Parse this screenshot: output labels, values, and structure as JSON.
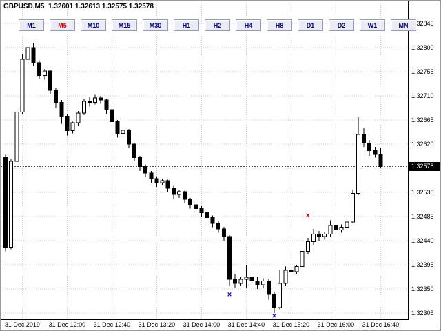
{
  "header": {
    "symbol_info": "GBPUSD,M5  1.32601 1.32613 1.32575 1.32578"
  },
  "toolbar": {
    "timeframes": [
      {
        "label": "M1",
        "active": false
      },
      {
        "label": "M5",
        "active": true
      },
      {
        "label": "M10",
        "active": false
      },
      {
        "label": "M15",
        "active": false
      },
      {
        "label": "M30",
        "active": false
      },
      {
        "label": "H1",
        "active": false
      },
      {
        "label": "H2",
        "active": false
      },
      {
        "label": "H4",
        "active": false
      },
      {
        "label": "H8",
        "active": false
      },
      {
        "label": "D1",
        "active": false
      },
      {
        "label": "D2",
        "active": false
      },
      {
        "label": "W1",
        "active": false
      },
      {
        "label": "MN",
        "active": false
      }
    ]
  },
  "chart_data": {
    "type": "candlestick",
    "symbol": "GBPUSD",
    "timeframe": "M5",
    "title": "GBPUSD,M5",
    "ohlc_readout": {
      "open": "1.32601",
      "high": "1.32613",
      "low": "1.32575",
      "close": "1.32578"
    },
    "current_price": 1.32578,
    "current_price_label": "1.32578",
    "price_axis": {
      "max": 1.32845,
      "min": 1.32305,
      "step": 0.00045,
      "labels": [
        1.32845,
        1.328,
        1.32755,
        1.3271,
        1.32665,
        1.3262,
        1.32575,
        1.3253,
        1.32485,
        1.3244,
        1.32395,
        1.3235,
        1.32305
      ]
    },
    "time_axis": [
      {
        "label": "31 Dec 2019",
        "index": 3
      },
      {
        "label": "31 Dec 12:00",
        "index": 11
      },
      {
        "label": "31 Dec 12:40",
        "index": 19
      },
      {
        "label": "31 Dec 13:20",
        "index": 27
      },
      {
        "label": "31 Dec 14:00",
        "index": 35
      },
      {
        "label": "31 Dec 14:40",
        "index": 43
      },
      {
        "label": "31 Dec 15:20",
        "index": 51
      },
      {
        "label": "31 Dec 16:00",
        "index": 59
      },
      {
        "label": "31 Dec 16:40",
        "index": 67
      }
    ],
    "candles": [
      [
        1.32595,
        1.326,
        1.3242,
        1.32428
      ],
      [
        1.32428,
        1.32592,
        1.32424,
        1.32588
      ],
      [
        1.32588,
        1.32684,
        1.32584,
        1.3268
      ],
      [
        1.3268,
        1.32788,
        1.32676,
        1.32778
      ],
      [
        1.32778,
        1.32815,
        1.32772,
        1.328
      ],
      [
        1.328,
        1.32808,
        1.32766,
        1.32772
      ],
      [
        1.32772,
        1.32776,
        1.32742,
        1.32748
      ],
      [
        1.32748,
        1.3276,
        1.3274,
        1.32756
      ],
      [
        1.32756,
        1.32758,
        1.32714,
        1.3272
      ],
      [
        1.3272,
        1.32724,
        1.32688,
        1.32698
      ],
      [
        1.32698,
        1.32702,
        1.32658,
        1.32672
      ],
      [
        1.32672,
        1.32676,
        1.32636,
        1.32645
      ],
      [
        1.32645,
        1.32662,
        1.3264,
        1.3266
      ],
      [
        1.3266,
        1.32682,
        1.32654,
        1.32678
      ],
      [
        1.32678,
        1.32705,
        1.32674,
        1.327
      ],
      [
        1.327,
        1.32708,
        1.3269,
        1.32698
      ],
      [
        1.32698,
        1.32712,
        1.32694,
        1.32706
      ],
      [
        1.32706,
        1.3271,
        1.32695,
        1.32702
      ],
      [
        1.32702,
        1.32704,
        1.32676,
        1.32684
      ],
      [
        1.32684,
        1.32686,
        1.32655,
        1.32662
      ],
      [
        1.32662,
        1.32665,
        1.32632,
        1.3264
      ],
      [
        1.3264,
        1.3265,
        1.32634,
        1.32646
      ],
      [
        1.32646,
        1.32648,
        1.32612,
        1.3262
      ],
      [
        1.3262,
        1.32622,
        1.32588,
        1.32595
      ],
      [
        1.32595,
        1.32598,
        1.3257,
        1.32578
      ],
      [
        1.32578,
        1.32582,
        1.32558,
        1.32566
      ],
      [
        1.32566,
        1.3257,
        1.32548,
        1.32556
      ],
      [
        1.32556,
        1.3256,
        1.3254,
        1.32548
      ],
      [
        1.32548,
        1.32556,
        1.32543,
        1.32552
      ],
      [
        1.32552,
        1.32554,
        1.3253,
        1.32538
      ],
      [
        1.32538,
        1.32542,
        1.32518,
        1.32526
      ],
      [
        1.32526,
        1.32534,
        1.3252,
        1.32531
      ],
      [
        1.32531,
        1.32533,
        1.3251,
        1.32517
      ],
      [
        1.32517,
        1.3252,
        1.325,
        1.32507
      ],
      [
        1.32507,
        1.32512,
        1.32494,
        1.325
      ],
      [
        1.325,
        1.32504,
        1.32485,
        1.32492
      ],
      [
        1.32492,
        1.32496,
        1.32476,
        1.32483
      ],
      [
        1.32483,
        1.32487,
        1.32465,
        1.32472
      ],
      [
        1.32472,
        1.32476,
        1.32455,
        1.32462
      ],
      [
        1.32462,
        1.32466,
        1.3244,
        1.32448
      ],
      [
        1.32448,
        1.3245,
        1.32355,
        1.32368
      ],
      [
        1.32368,
        1.32378,
        1.32352,
        1.3236
      ],
      [
        1.3236,
        1.32372,
        1.32355,
        1.32368
      ],
      [
        1.32368,
        1.32395,
        1.32352,
        1.32372
      ],
      [
        1.32372,
        1.3238,
        1.32358,
        1.32365
      ],
      [
        1.32365,
        1.32372,
        1.3235,
        1.32358
      ],
      [
        1.32358,
        1.3237,
        1.32352,
        1.32365
      ],
      [
        1.32365,
        1.32368,
        1.3233,
        1.3234
      ],
      [
        1.3234,
        1.32345,
        1.32305,
        1.32315
      ],
      [
        1.32315,
        1.32385,
        1.32312,
        1.3236
      ],
      [
        1.3236,
        1.32392,
        1.32355,
        1.32385
      ],
      [
        1.32385,
        1.32398,
        1.32375,
        1.32382
      ],
      [
        1.32382,
        1.32395,
        1.32378,
        1.32392
      ],
      [
        1.32392,
        1.32428,
        1.32388,
        1.3242
      ],
      [
        1.3242,
        1.32445,
        1.32415,
        1.32438
      ],
      [
        1.32438,
        1.32462,
        1.32432,
        1.32452
      ],
      [
        1.32452,
        1.32458,
        1.3244,
        1.32448
      ],
      [
        1.32448,
        1.32456,
        1.32442,
        1.32452
      ],
      [
        1.32452,
        1.32478,
        1.32448,
        1.32468
      ],
      [
        1.32468,
        1.32472,
        1.32452,
        1.3246
      ],
      [
        1.3246,
        1.3247,
        1.32455,
        1.32465
      ],
      [
        1.32465,
        1.3248,
        1.3246,
        1.32475
      ],
      [
        1.32475,
        1.32535,
        1.32472,
        1.32528
      ],
      [
        1.32528,
        1.3267,
        1.32525,
        1.32638
      ],
      [
        1.32638,
        1.3265,
        1.32615,
        1.32622
      ],
      [
        1.32622,
        1.32628,
        1.32598,
        1.32608
      ],
      [
        1.32608,
        1.32615,
        1.32595,
        1.32601
      ],
      [
        1.32601,
        1.32613,
        1.32575,
        1.32578
      ]
    ],
    "markers": [
      {
        "index": 40,
        "price": 1.3234,
        "glyph": "×",
        "color": "#0000cc",
        "name": "sell-signal-marker"
      },
      {
        "index": 48,
        "price": 1.323,
        "glyph": "×",
        "color": "#0000cc",
        "name": "sell-signal-marker"
      },
      {
        "index": 54,
        "price": 1.32487,
        "glyph": "×",
        "color": "#cc0000",
        "name": "buy-signal-marker"
      }
    ],
    "layout_hints": {
      "grid": true,
      "grid_style": "dotted",
      "bid_line_price": 1.32578
    }
  },
  "colors": {
    "up_candle": "#ffffff",
    "down_candle": "#000000",
    "outline": "#000000",
    "grid": "#cdcdcd",
    "bid_line": "#4a4a4a",
    "badge_bg": "#000000",
    "badge_text": "#ffffff",
    "button_text": "#000080",
    "active_button_text": "#e00000",
    "axis_line": "#000000"
  }
}
